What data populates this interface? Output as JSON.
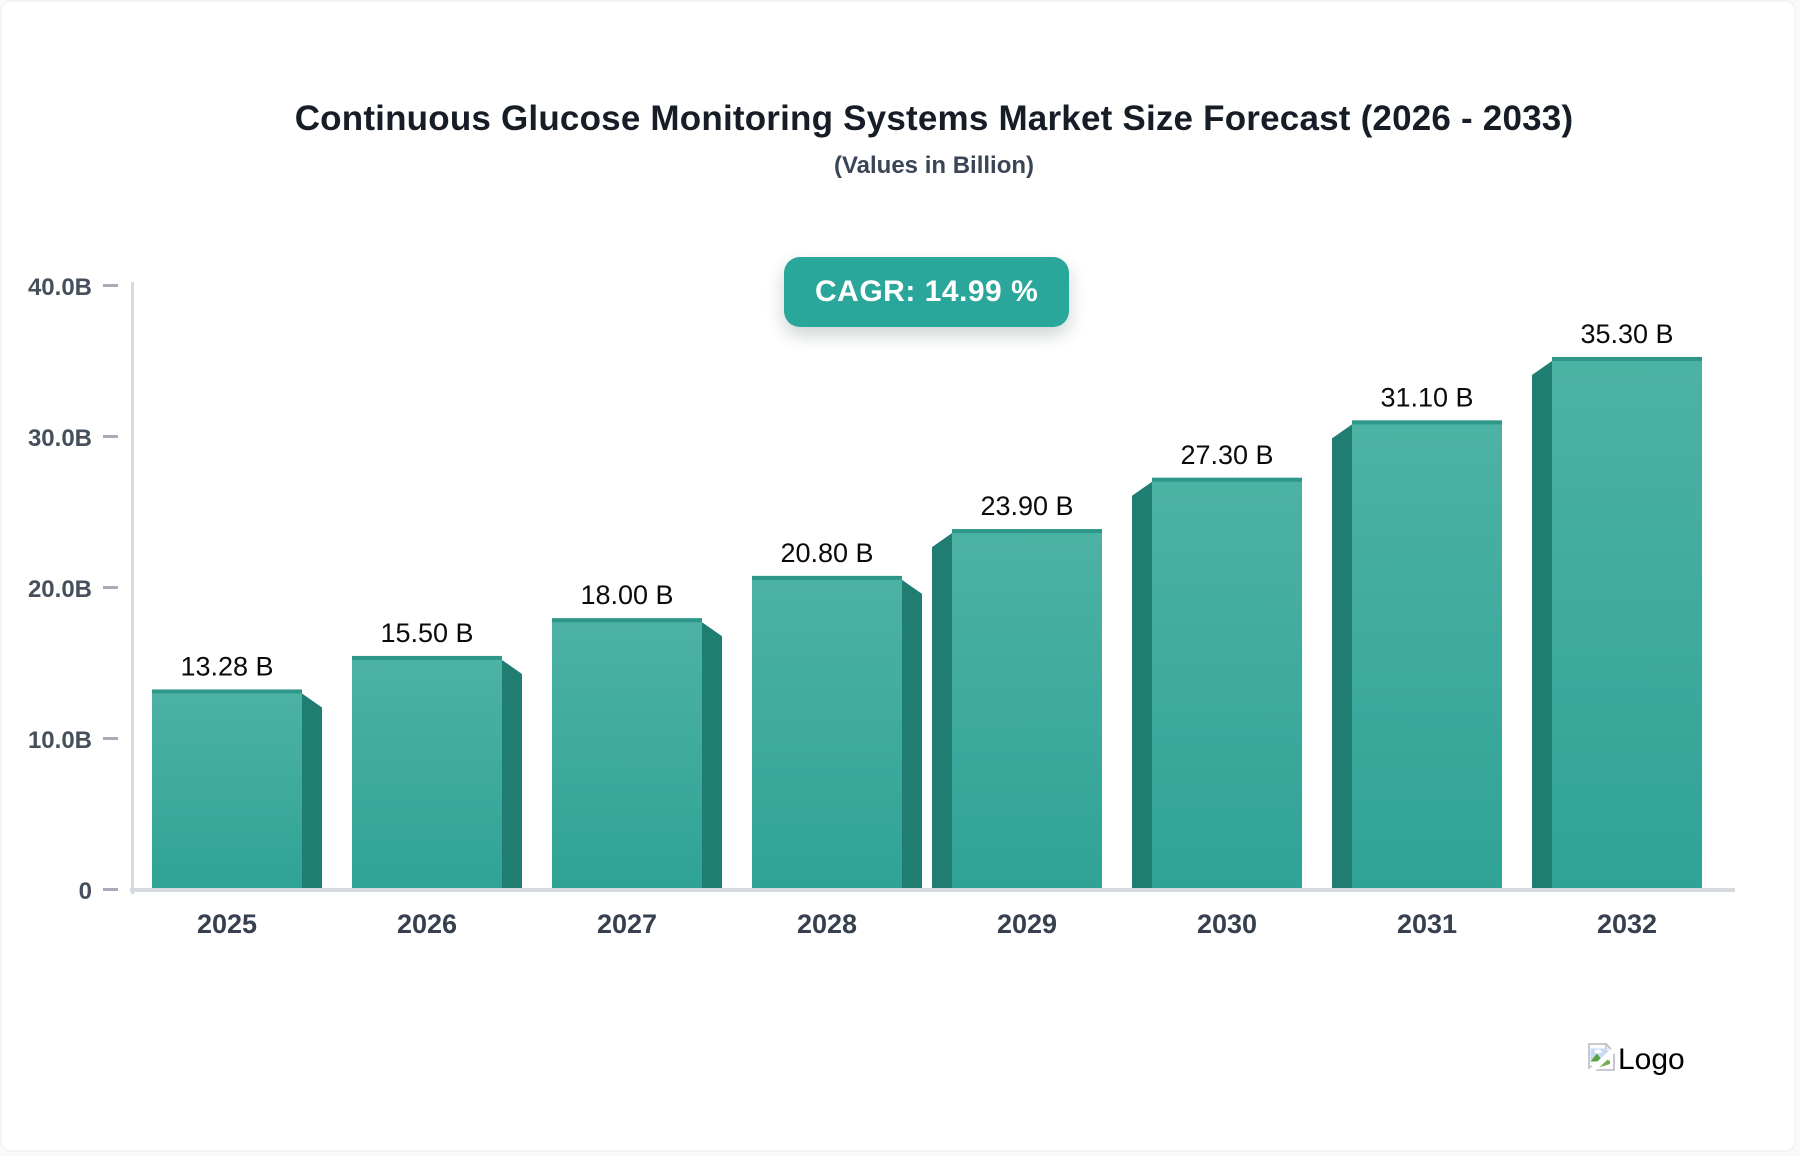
{
  "page": {
    "background": "#f8fafc",
    "card_background": "#ffffff"
  },
  "header": {
    "title": "Continuous Glucose Monitoring Systems Market Size Forecast (2026 - 2033)",
    "subtitle": "(Values in Billion)"
  },
  "badge": {
    "label": "CAGR: 14.99 %",
    "background": "#2aa79a",
    "text_color": "#ffffff"
  },
  "chart_data": {
    "type": "bar",
    "title": "Continuous Glucose Monitoring Systems Market Size Forecast (2026 - 2033)",
    "subtitle": "(Values in Billion)",
    "categories": [
      "2025",
      "2026",
      "2027",
      "2028",
      "2029",
      "2030",
      "2031",
      "2032"
    ],
    "values": [
      13.28,
      15.5,
      18.0,
      20.8,
      23.9,
      27.3,
      31.1,
      35.3
    ],
    "data_labels": [
      "13.28 B",
      "15.50 B",
      "18.00 B",
      "20.80 B",
      "23.90 B",
      "27.30 B",
      "31.10 B",
      "35.30 B"
    ],
    "xlabel": "",
    "ylabel": "",
    "ylim": [
      0,
      40
    ],
    "ytick_values": [
      0,
      10,
      20,
      30,
      40
    ],
    "ytick_labels": [
      "0",
      "10.0B",
      "20.0B",
      "30.0B",
      "40.0B"
    ],
    "grid": false,
    "legend": false,
    "style": {
      "effect": "3d-perspective",
      "bar_face_top": "#4db2a5",
      "bar_face_bottom": "#2fa396",
      "bar_top_edge": "#2e978a",
      "bar_side": "#1f7d71",
      "axis_color": "#d6d9de",
      "tick_color": "#a7adb6",
      "ytick_text_color": "#46505c",
      "xtick_text_color": "#36404e",
      "value_label_color": "#0a0a0a"
    }
  },
  "logo": {
    "alt_text": "Logo"
  }
}
